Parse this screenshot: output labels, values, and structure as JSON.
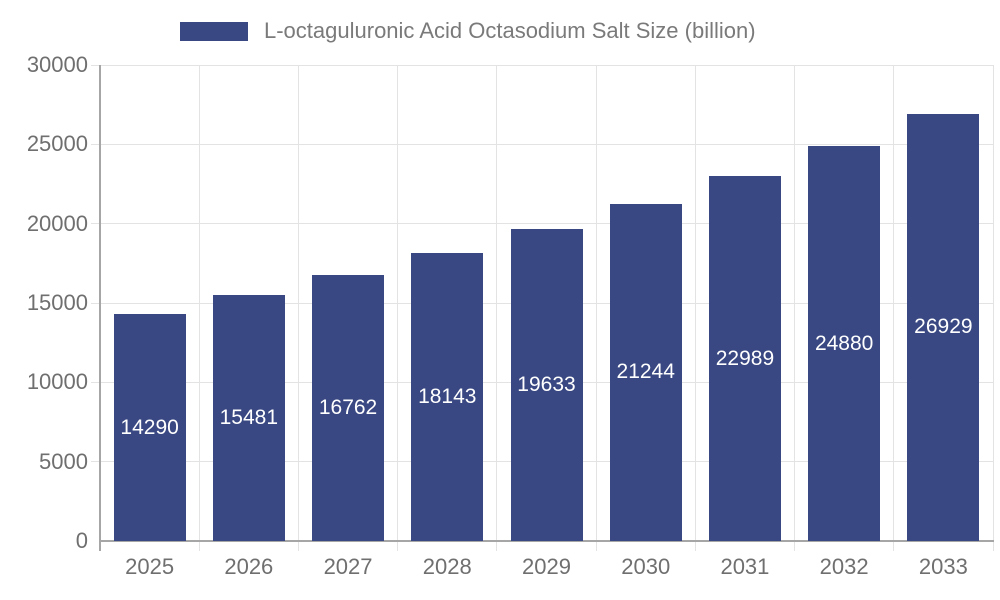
{
  "legend": {
    "label": "L-octaguluronic Acid Octasodium Salt Size (billion)"
  },
  "colors": {
    "bar": "#394882",
    "gridline": "#e3e3e3",
    "axis": "#a6a6a6",
    "tick_text": "#6f6f6f",
    "title_text": "#7a7a7a",
    "value_text": "#ffffff",
    "background": "#ffffff"
  },
  "chart_data": {
    "type": "bar",
    "title": "L-octaguluronic Acid Octasodium Salt Size (billion)",
    "categories": [
      "2025",
      "2026",
      "2027",
      "2028",
      "2029",
      "2030",
      "2031",
      "2032",
      "2033"
    ],
    "values": [
      14290,
      15481,
      16762,
      18143,
      19633,
      21244,
      22989,
      24880,
      26929
    ],
    "xlabel": "",
    "ylabel": "",
    "ylim": [
      0,
      30000
    ],
    "yticks": [
      0,
      5000,
      10000,
      15000,
      20000,
      25000,
      30000
    ],
    "grid": true,
    "legend_position": "top",
    "value_label_position": "inside-center"
  }
}
